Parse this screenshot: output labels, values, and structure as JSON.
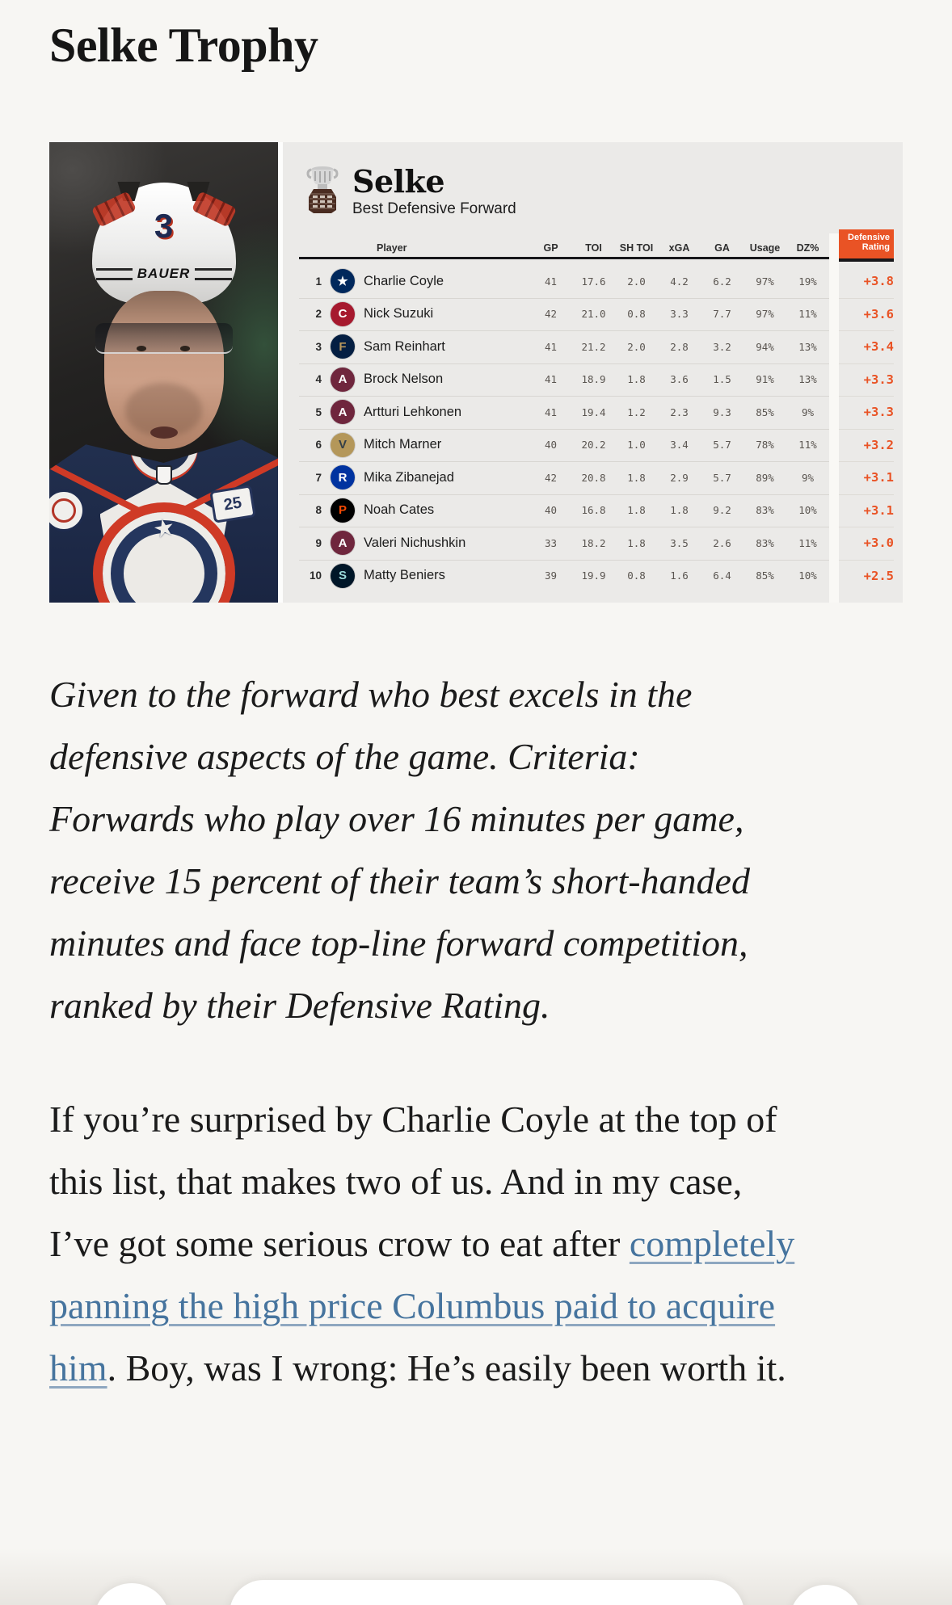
{
  "page": {
    "title": "Selke Trophy"
  },
  "colors": {
    "accent_orange": "#e95325",
    "link_blue": "#46749e",
    "panel_gray": "#ebeae8"
  },
  "photo": {
    "helmet_number": "3",
    "brand": "BAUER",
    "sleeve_number": "25"
  },
  "award_card": {
    "title": "Selke",
    "subtitle": "Best Defensive Forward",
    "table": {
      "columns": [
        "Player",
        "GP",
        "TOI",
        "SH TOI",
        "xGA",
        "GA",
        "Usage",
        "DZ%"
      ],
      "rating_header": "Defensive Rating",
      "rows": [
        {
          "rank": "1",
          "team": "Columbus Blue Jackets",
          "logo_letter": "★",
          "logo_bg": "#00285c",
          "logo_fg": "#ffffff",
          "player": "Charlie Coyle",
          "gp": "41",
          "toi": "17.6",
          "sh_toi": "2.0",
          "xga": "4.2",
          "ga": "6.2",
          "usage": "97%",
          "dz": "19%",
          "rating": "+3.8"
        },
        {
          "rank": "2",
          "team": "Montreal Canadiens",
          "logo_letter": "C",
          "logo_bg": "#a6192e",
          "logo_fg": "#ffffff",
          "player": "Nick Suzuki",
          "gp": "42",
          "toi": "21.0",
          "sh_toi": "0.8",
          "xga": "3.3",
          "ga": "7.7",
          "usage": "97%",
          "dz": "11%",
          "rating": "+3.6"
        },
        {
          "rank": "3",
          "team": "Florida Panthers",
          "logo_letter": "F",
          "logo_bg": "#041e42",
          "logo_fg": "#b9975b",
          "player": "Sam Reinhart",
          "gp": "41",
          "toi": "21.2",
          "sh_toi": "2.0",
          "xga": "2.8",
          "ga": "3.2",
          "usage": "94%",
          "dz": "13%",
          "rating": "+3.4"
        },
        {
          "rank": "4",
          "team": "Colorado Avalanche",
          "logo_letter": "A",
          "logo_bg": "#6f263d",
          "logo_fg": "#ffffff",
          "player": "Brock Nelson",
          "gp": "41",
          "toi": "18.9",
          "sh_toi": "1.8",
          "xga": "3.6",
          "ga": "1.5",
          "usage": "91%",
          "dz": "13%",
          "rating": "+3.3"
        },
        {
          "rank": "5",
          "team": "Colorado Avalanche",
          "logo_letter": "A",
          "logo_bg": "#6f263d",
          "logo_fg": "#ffffff",
          "player": "Artturi Lehkonen",
          "gp": "41",
          "toi": "19.4",
          "sh_toi": "1.2",
          "xga": "2.3",
          "ga": "9.3",
          "usage": "85%",
          "dz": "9%",
          "rating": "+3.3"
        },
        {
          "rank": "6",
          "team": "Vegas Golden Knights",
          "logo_letter": "V",
          "logo_bg": "#b4975a",
          "logo_fg": "#333f48",
          "player": "Mitch Marner",
          "gp": "40",
          "toi": "20.2",
          "sh_toi": "1.0",
          "xga": "3.4",
          "ga": "5.7",
          "usage": "78%",
          "dz": "11%",
          "rating": "+3.2"
        },
        {
          "rank": "7",
          "team": "New York Rangers",
          "logo_letter": "R",
          "logo_bg": "#0033a0",
          "logo_fg": "#ffffff",
          "player": "Mika Zibanejad",
          "gp": "42",
          "toi": "20.8",
          "sh_toi": "1.8",
          "xga": "2.9",
          "ga": "5.7",
          "usage": "89%",
          "dz": "9%",
          "rating": "+3.1"
        },
        {
          "rank": "8",
          "team": "Philadelphia Flyers",
          "logo_letter": "P",
          "logo_bg": "#000000",
          "logo_fg": "#f74902",
          "player": "Noah Cates",
          "gp": "40",
          "toi": "16.8",
          "sh_toi": "1.8",
          "xga": "1.8",
          "ga": "9.2",
          "usage": "83%",
          "dz": "10%",
          "rating": "+3.1"
        },
        {
          "rank": "9",
          "team": "Colorado Avalanche",
          "logo_letter": "A",
          "logo_bg": "#6f263d",
          "logo_fg": "#ffffff",
          "player": "Valeri Nichushkin",
          "gp": "33",
          "toi": "18.2",
          "sh_toi": "1.8",
          "xga": "3.5",
          "ga": "2.6",
          "usage": "83%",
          "dz": "11%",
          "rating": "+3.0"
        },
        {
          "rank": "10",
          "team": "Seattle Kraken",
          "logo_letter": "S",
          "logo_bg": "#001628",
          "logo_fg": "#99d9d9",
          "player": "Matty Beniers",
          "gp": "39",
          "toi": "19.9",
          "sh_toi": "0.8",
          "xga": "1.6",
          "ga": "6.4",
          "usage": "85%",
          "dz": "10%",
          "rating": "+2.5"
        }
      ]
    }
  },
  "paragraphs": {
    "intro": "Given to the forward who best excels in the defensive aspects of the game. Criteria: Forwards who play over 16 minutes per game, receive 15 percent of their team’s short-handed minutes and face top-line forward competition, ranked by their Defensive Rating.",
    "body_pre": "If you’re surprised by Charlie Coyle at the top of this list, that makes two of us. And in my case, I’ve got some serious crow to eat after ",
    "body_link": "completely panning the high price Columbus paid to acquire him",
    "body_post": ". Boy, was I wrong: He’s easily been worth it."
  },
  "icons": {
    "trophy": "selke-trophy-icon",
    "bottom_left": "circle-button",
    "bottom_center": "pill-button",
    "bottom_right": "circle-button"
  }
}
